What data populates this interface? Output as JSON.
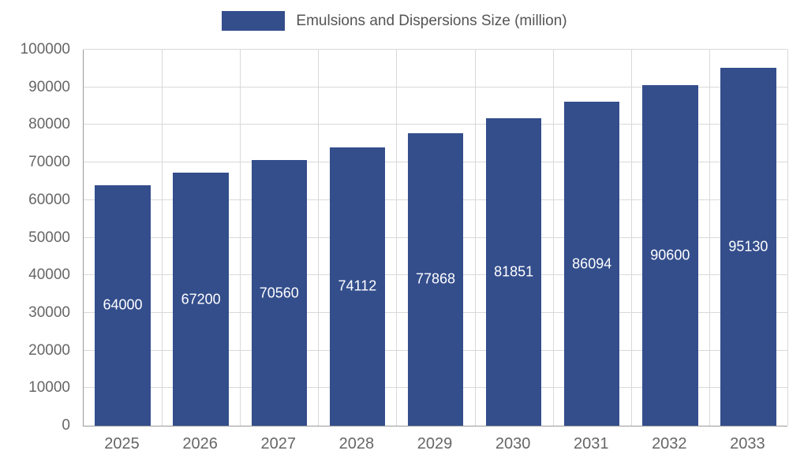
{
  "legend": {
    "label": "Emulsions and Dispersions Size (million)"
  },
  "colors": {
    "bar": "#344e8c",
    "bar_value_label": "#ffffff",
    "axis_text": "#666666",
    "legend_text": "#555555",
    "grid_line": "#d9d9d9",
    "axis_line": "#999999",
    "background": "#ffffff"
  },
  "chart_data": {
    "type": "bar",
    "title": "Emulsions and Dispersions Size (million)",
    "series_name": "Emulsions and Dispersions Size (million)",
    "categories": [
      "2025",
      "2026",
      "2027",
      "2028",
      "2029",
      "2030",
      "2031",
      "2032",
      "2033"
    ],
    "values": [
      64000,
      67200,
      70560,
      74112,
      77868,
      81851,
      86094,
      90600,
      95130
    ],
    "value_labels": [
      "64000",
      "67200",
      "70560",
      "74112",
      "77868",
      "81851",
      "86094",
      "90600",
      "95130"
    ],
    "xlabel": "",
    "ylabel": "",
    "ylim": [
      0,
      100000
    ],
    "y_ticks": [
      0,
      10000,
      20000,
      30000,
      40000,
      50000,
      60000,
      70000,
      80000,
      90000,
      100000
    ],
    "y_tick_labels": [
      "0",
      "10000",
      "20000",
      "30000",
      "40000",
      "50000",
      "60000",
      "70000",
      "80000",
      "90000",
      "100000"
    ],
    "grid": true,
    "legend_position": "top",
    "bar_label_position": "inside-center"
  }
}
